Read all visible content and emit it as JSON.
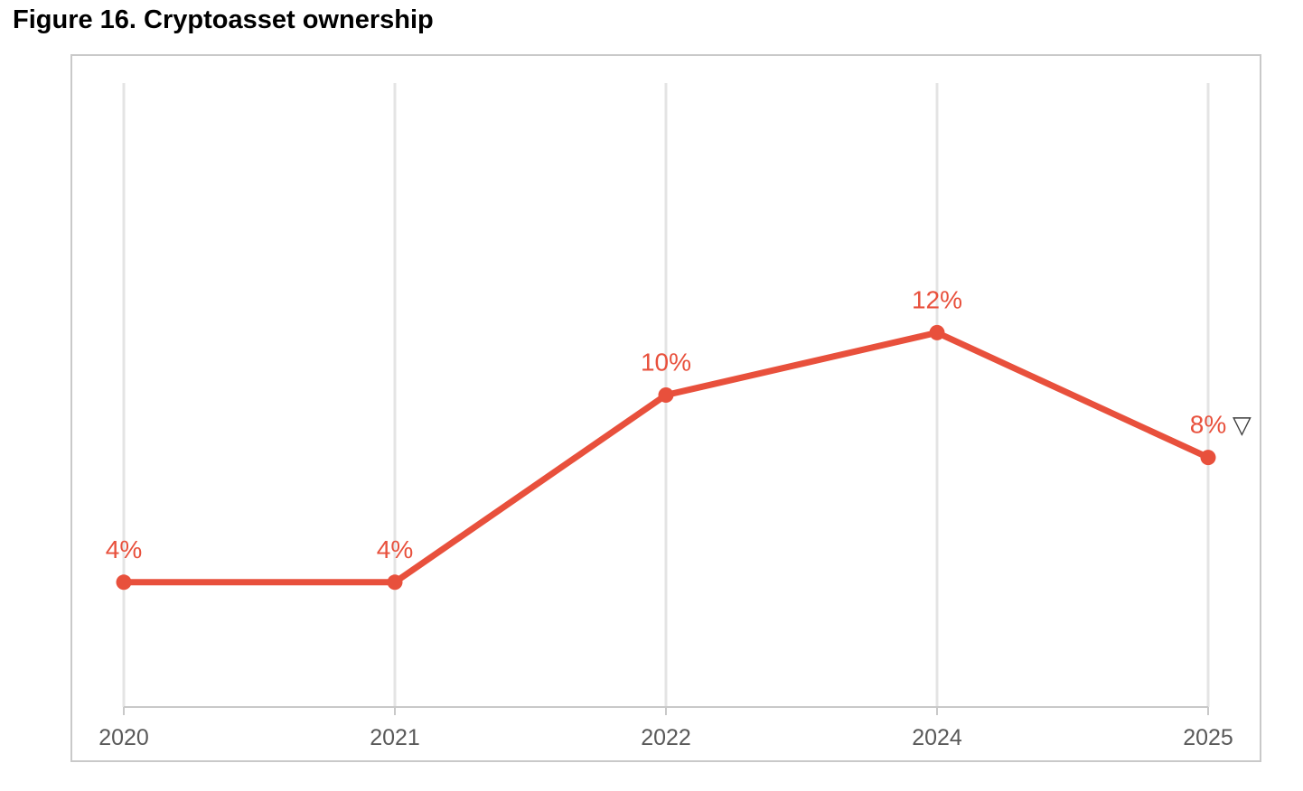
{
  "title": "Figure 16. Cryptoasset ownership",
  "chart_data": {
    "type": "line",
    "categories": [
      "2020",
      "2021",
      "2022",
      "2024",
      "2025"
    ],
    "series": [
      {
        "name": "Cryptoasset ownership",
        "values": [
          4,
          4,
          10,
          12,
          8
        ]
      }
    ],
    "data_labels": [
      "4%",
      "4%",
      "10%",
      "12%",
      "8%"
    ],
    "last_point_annotation": "▽",
    "title": "Figure 16. Cryptoasset ownership",
    "xlabel": "",
    "ylabel": "",
    "ylim": [
      0,
      20
    ],
    "grid": "vertical-only",
    "legend": "none",
    "colors": {
      "line": "#e8503c",
      "marker": "#e8503c",
      "data_label": "#e8503c",
      "annotation": "#3d3d3d",
      "axis_tick_label": "#595959",
      "gridline": "#e4e4e4",
      "axis_line": "#c9c9c9",
      "border": "#c9c9c9"
    }
  }
}
